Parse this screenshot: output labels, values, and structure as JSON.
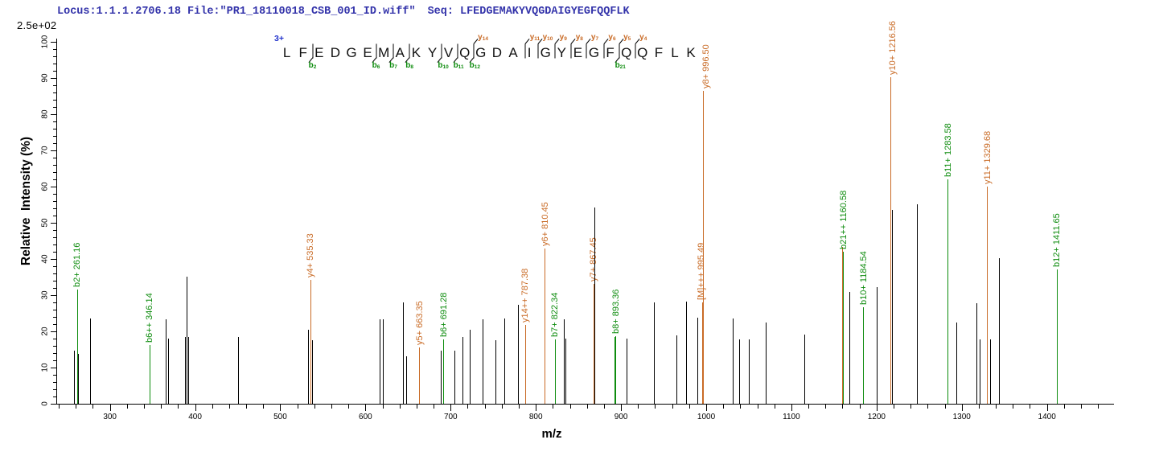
{
  "header": {
    "locus_file": "Locus:1.1.1.2706.18 File:\"PR1_18110018_CSB_001_ID.wiff\"",
    "seq_label": "Seq:",
    "sequence": "LFEDGEMAKYVQGDAIGYEGFQQFLK"
  },
  "colors": {
    "header_text": "#3333aa",
    "charge_text": "#2233cc",
    "b_ion": "#0e8c0e",
    "y_ion": "#c96b26",
    "peak": "#000000",
    "axis": "#000000"
  },
  "chart_data": {
    "type": "bar",
    "subtype": "ms2_centroid_mass_spectrum",
    "title": "",
    "xlabel": "m/z",
    "ylabel": "Relative  Intensity (%)",
    "intensity_scale_label": "2.5e+02",
    "precursor_charge_label": "3+",
    "xlim": [
      238.0,
      1478.7
    ],
    "ylim": [
      0,
      100
    ],
    "x_major_ticks": [
      300,
      400,
      500,
      600,
      700,
      800,
      900,
      1000,
      1100,
      1200,
      1300,
      1400
    ],
    "x_minor_tick_start": 240,
    "x_minor_tick_end": 1460,
    "x_minor_tick_step": 20,
    "y_major_tick_step": 10,
    "y_minor_tick_step": 2,
    "grid": false,
    "legend": false,
    "sequence_ladder": {
      "sequence": "LFEDGEMAKYVQGDAIGYEGFQQFLK",
      "b_fragments": [
        2,
        6,
        7,
        8,
        10,
        11,
        12,
        21
      ],
      "y_fragments": [
        14,
        11,
        10,
        9,
        8,
        7,
        6,
        5,
        4
      ]
    },
    "peaks": [
      {
        "mz": 257.5,
        "intensity": 14.7,
        "ion": null,
        "label": null
      },
      {
        "mz": 261.16,
        "intensity": 31.6,
        "ion": "b",
        "label": "b2+ 261.16"
      },
      {
        "mz": 262.4,
        "intensity": 13.8,
        "ion": null,
        "label": null
      },
      {
        "mz": 276.7,
        "intensity": 23.6,
        "ion": null,
        "label": null
      },
      {
        "mz": 346.14,
        "intensity": 16.4,
        "ion": "b",
        "label": "b6++ 346.14"
      },
      {
        "mz": 365.5,
        "intensity": 23.5,
        "ion": null,
        "label": null
      },
      {
        "mz": 368.7,
        "intensity": 18.0,
        "ion": null,
        "label": null
      },
      {
        "mz": 387.7,
        "intensity": 18.5,
        "ion": null,
        "label": null
      },
      {
        "mz": 389.9,
        "intensity": 35.1,
        "ion": null,
        "label": null
      },
      {
        "mz": 391.8,
        "intensity": 18.5,
        "ion": null,
        "label": null
      },
      {
        "mz": 450.2,
        "intensity": 18.5,
        "ion": null,
        "label": null
      },
      {
        "mz": 532.2,
        "intensity": 20.5,
        "ion": null,
        "label": null
      },
      {
        "mz": 535.33,
        "intensity": 34.4,
        "ion": "y",
        "label": "y4+ 535.33"
      },
      {
        "mz": 537.1,
        "intensity": 17.7,
        "ion": null,
        "label": null
      },
      {
        "mz": 616.3,
        "intensity": 23.4,
        "ion": null,
        "label": null
      },
      {
        "mz": 620.1,
        "intensity": 23.4,
        "ion": null,
        "label": null
      },
      {
        "mz": 644.4,
        "intensity": 28.1,
        "ion": null,
        "label": null
      },
      {
        "mz": 647.5,
        "intensity": 13.3,
        "ion": null,
        "label": null
      },
      {
        "mz": 663.35,
        "intensity": 15.7,
        "ion": "y",
        "label": "y5+ 663.35"
      },
      {
        "mz": 688.0,
        "intensity": 14.8,
        "ion": null,
        "label": null
      },
      {
        "mz": 691.28,
        "intensity": 17.9,
        "ion": "b",
        "label": "b6+ 691.28"
      },
      {
        "mz": 704.2,
        "intensity": 14.7,
        "ion": null,
        "label": null
      },
      {
        "mz": 714.1,
        "intensity": 18.5,
        "ion": null,
        "label": null
      },
      {
        "mz": 722.8,
        "intensity": 20.6,
        "ion": null,
        "label": null
      },
      {
        "mz": 737.9,
        "intensity": 23.5,
        "ion": null,
        "label": null
      },
      {
        "mz": 752.5,
        "intensity": 17.7,
        "ion": null,
        "label": null
      },
      {
        "mz": 762.8,
        "intensity": 23.7,
        "ion": null,
        "label": null
      },
      {
        "mz": 778.9,
        "intensity": 27.5,
        "ion": null,
        "label": null
      },
      {
        "mz": 787.38,
        "intensity": 21.9,
        "ion": "y",
        "label": "y14++ 787.38"
      },
      {
        "mz": 810.45,
        "intensity": 43.0,
        "ion": "y",
        "label": "y6+ 810.45"
      },
      {
        "mz": 822.34,
        "intensity": 17.8,
        "ion": "b",
        "label": "b7+ 822.34"
      },
      {
        "mz": 833.0,
        "intensity": 23.4,
        "ion": null,
        "label": null
      },
      {
        "mz": 834.4,
        "intensity": 18.1,
        "ion": null,
        "label": null
      },
      {
        "mz": 867.45,
        "intensity": 33.3,
        "ion": "y",
        "label": "y7+ 867.45"
      },
      {
        "mz": 868.4,
        "intensity": 54.3,
        "ion": null,
        "label": null
      },
      {
        "mz": 892.0,
        "intensity": 18.5,
        "ion": "b",
        "label": null
      },
      {
        "mz": 893.36,
        "intensity": 18.7,
        "ion": "b",
        "label": "b8+ 893.36"
      },
      {
        "mz": 906.2,
        "intensity": 18.0,
        "ion": null,
        "label": null
      },
      {
        "mz": 938.7,
        "intensity": 28.0,
        "ion": null,
        "label": null
      },
      {
        "mz": 964.9,
        "intensity": 18.9,
        "ion": null,
        "label": null
      },
      {
        "mz": 976.7,
        "intensity": 28.3,
        "ion": null,
        "label": null
      },
      {
        "mz": 989.9,
        "intensity": 23.8,
        "ion": null,
        "label": null
      },
      {
        "mz": 995.49,
        "intensity": 28.0,
        "ion": "y",
        "label": "[M]+++ 995.49"
      },
      {
        "mz": 996.5,
        "intensity": 86.6,
        "ion": "y",
        "label": "y8+ 996.50"
      },
      {
        "mz": 1030.7,
        "intensity": 23.6,
        "ion": null,
        "label": null
      },
      {
        "mz": 1038.8,
        "intensity": 17.8,
        "ion": null,
        "label": null
      },
      {
        "mz": 1050.3,
        "intensity": 17.9,
        "ion": null,
        "label": null
      },
      {
        "mz": 1069.9,
        "intensity": 22.6,
        "ion": null,
        "label": null
      },
      {
        "mz": 1115.6,
        "intensity": 19.1,
        "ion": null,
        "label": null
      },
      {
        "mz": 1159.9,
        "intensity": 43.4,
        "ion": "y",
        "label": null
      },
      {
        "mz": 1160.9,
        "intensity": 42.0,
        "ion": null,
        "label": null
      },
      {
        "mz": 1160.58,
        "intensity": 42.2,
        "ion": "b",
        "label": "b21++ 1160.58"
      },
      {
        "mz": 1168.3,
        "intensity": 31.0,
        "ion": null,
        "label": null
      },
      {
        "mz": 1184.54,
        "intensity": 26.7,
        "ion": "b",
        "label": "b10+ 1184.54"
      },
      {
        "mz": 1199.9,
        "intensity": 32.4,
        "ion": null,
        "label": null
      },
      {
        "mz": 1216.56,
        "intensity": 90.3,
        "ion": "y",
        "label": "y10+ 1216.56"
      },
      {
        "mz": 1217.7,
        "intensity": 53.6,
        "ion": null,
        "label": null
      },
      {
        "mz": 1247.0,
        "intensity": 55.3,
        "ion": null,
        "label": null
      },
      {
        "mz": 1283.58,
        "intensity": 62.0,
        "ion": "b",
        "label": "b11+ 1283.58"
      },
      {
        "mz": 1293.3,
        "intensity": 22.5,
        "ion": null,
        "label": null
      },
      {
        "mz": 1316.8,
        "intensity": 27.9,
        "ion": null,
        "label": null
      },
      {
        "mz": 1321.1,
        "intensity": 17.8,
        "ion": null,
        "label": null
      },
      {
        "mz": 1329.68,
        "intensity": 60.0,
        "ion": "y",
        "label": "y11+ 1329.68"
      },
      {
        "mz": 1333.6,
        "intensity": 17.8,
        "ion": null,
        "label": null
      },
      {
        "mz": 1343.7,
        "intensity": 40.4,
        "ion": null,
        "label": null
      },
      {
        "mz": 1411.65,
        "intensity": 37.1,
        "ion": "b",
        "label": "b12+ 1411.65"
      }
    ]
  }
}
